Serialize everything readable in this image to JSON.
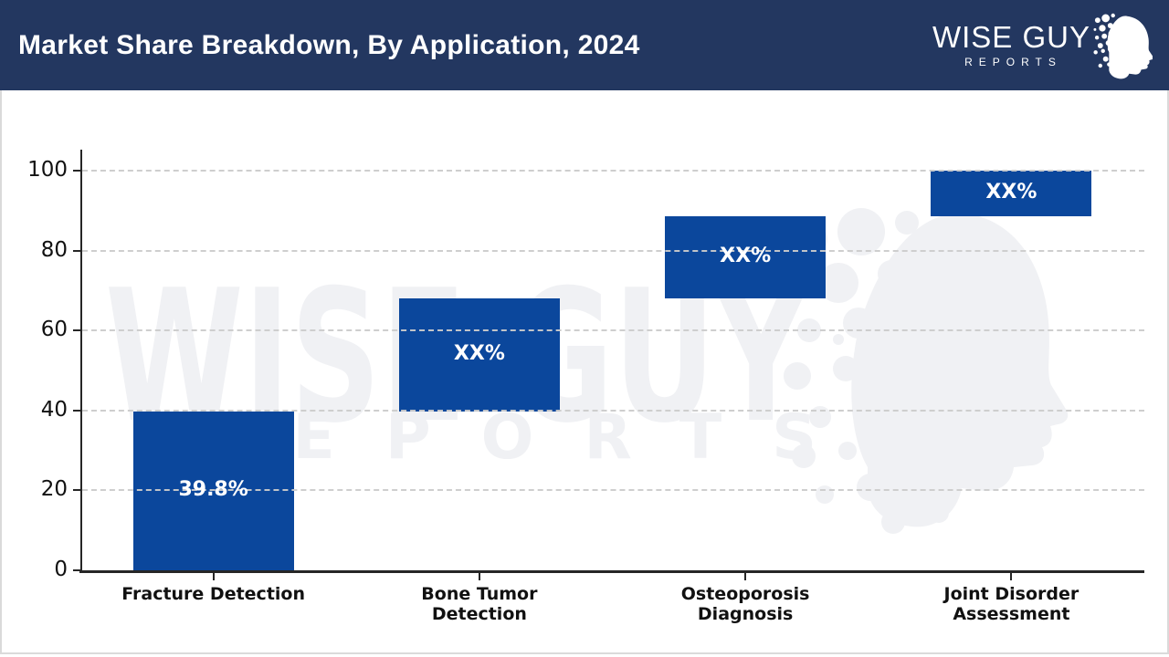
{
  "header": {
    "title": "Market Share Breakdown, By Application, 2024",
    "logo": {
      "line1": "WISE GUY",
      "line2": "REPORTS"
    },
    "bg_color": "#233760"
  },
  "watermark": {
    "line1": "WISE GUY",
    "line2": "REPORTS"
  },
  "chart_data": {
    "type": "bar",
    "subtype": "waterfall",
    "title": "Market Share Breakdown, By Application, 2024",
    "categories": [
      "Fracture Detection",
      "Bone Tumor\nDetection",
      "Osteoporosis\nDiagnosis",
      "Joint Disorder\nAssessment"
    ],
    "segments": [
      {
        "category": "Fracture Detection",
        "start": 0,
        "end": 39.8,
        "value": 39.8,
        "value_label": "39.8%"
      },
      {
        "category": "Bone Tumor Detection",
        "start": 39.8,
        "end": 68.0,
        "value": 28.2,
        "value_label": "XX%"
      },
      {
        "category": "Osteoporosis Diagnosis",
        "start": 68.0,
        "end": 88.6,
        "value": 20.6,
        "value_label": "XX%"
      },
      {
        "category": "Joint Disorder Assessment",
        "start": 88.6,
        "end": 100,
        "value": 11.4,
        "value_label": "XX%"
      }
    ],
    "ylim": [
      0,
      100
    ],
    "yticks": [
      0,
      20,
      40,
      60,
      80,
      100
    ],
    "xlabel": "",
    "ylabel": "",
    "grid": "horizontal-dashed",
    "legend": "none",
    "bar_color": "#0b479c",
    "grid_color": "#cbcbcb",
    "axis_color": "#262626",
    "value_label_color": "#ffffff",
    "watermark_color": "#f0f1f4"
  }
}
